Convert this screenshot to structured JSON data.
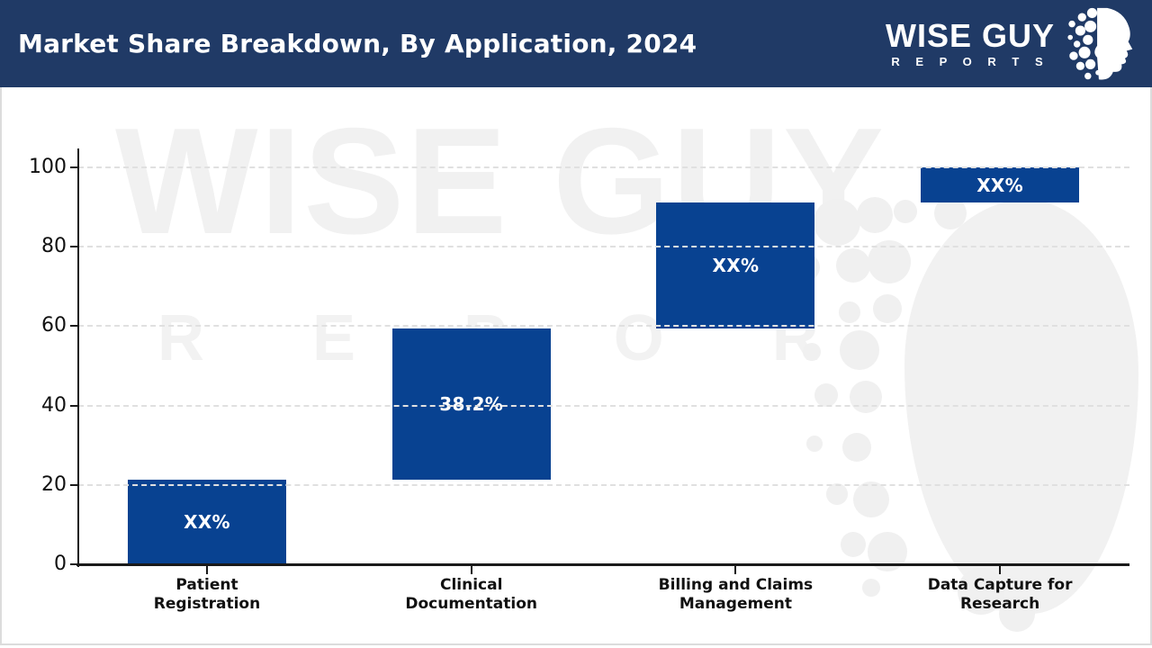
{
  "header": {
    "title": "Market Share Breakdown, By Application, 2024",
    "bg_color": "#203a66",
    "brand": {
      "name": "WISE GUY",
      "tagline": "R E P O R T S"
    }
  },
  "watermark": {
    "line1": "WISE GUY",
    "line2": "R E P O R T S"
  },
  "colors": {
    "bar": "#084291",
    "grid": "#e0e0e0",
    "axis": "#1a1a1a",
    "bar_label": "#ffffff",
    "header_bg": "#203a66"
  },
  "chart_data": {
    "type": "bar",
    "subtype": "waterfall",
    "title": "Market Share Breakdown, By Application, 2024",
    "xlabel": "",
    "ylabel": "",
    "ylim": [
      0,
      105
    ],
    "yticks": [
      0,
      20,
      40,
      60,
      80,
      100
    ],
    "grid": "horizontal-dashed",
    "legend": "none",
    "bar_color": "#084291",
    "categories": [
      "Patient Registration",
      "Clinical Documentation",
      "Billing and Claims Management",
      "Data Capture for Research"
    ],
    "category_lines": [
      [
        "Patient",
        "Registration"
      ],
      [
        "Clinical",
        "Documentation"
      ],
      [
        "Billing and Claims",
        "Management"
      ],
      [
        "Data Capture for",
        "Research"
      ]
    ],
    "segments": [
      {
        "category": "Patient Registration",
        "start": 0,
        "end": 21.3,
        "value": 21.3,
        "label": "XX%"
      },
      {
        "category": "Clinical Documentation",
        "start": 21.3,
        "end": 59.5,
        "value": 38.2,
        "label": "38.2%"
      },
      {
        "category": "Billing and Claims Management",
        "start": 59.5,
        "end": 91.1,
        "value": 31.6,
        "label": "XX%"
      },
      {
        "category": "Data Capture for Research",
        "start": 91.1,
        "end": 100,
        "value": 8.9,
        "label": "XX%"
      }
    ]
  }
}
